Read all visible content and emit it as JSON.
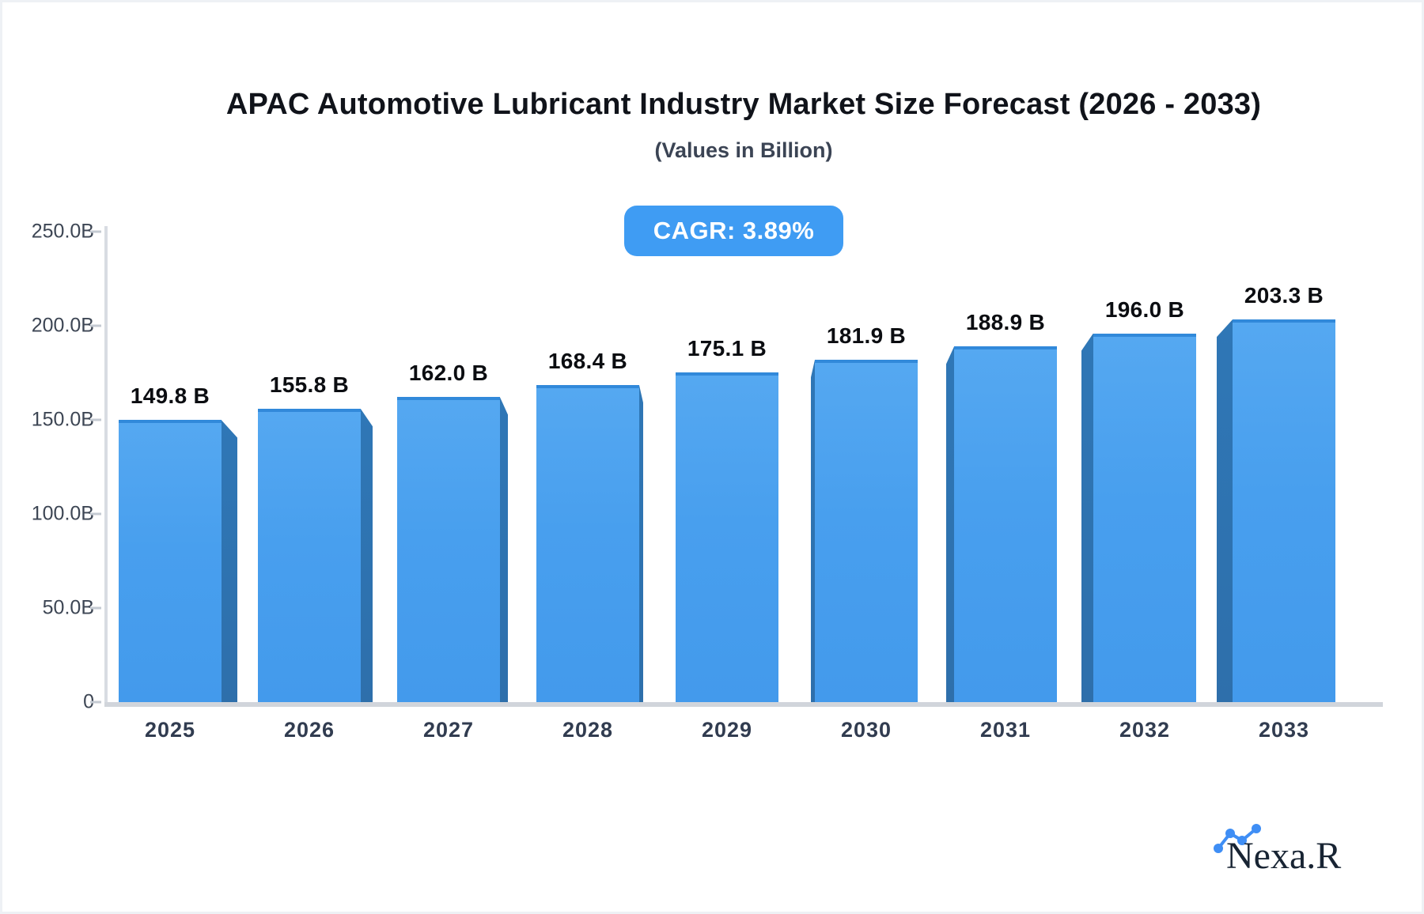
{
  "header": {
    "title": "APAC Automotive Lubricant Industry Market Size Forecast (2026 - 2033)",
    "subtitle": "(Values in Billion)",
    "cagr_badge": "CAGR: 3.89%",
    "badge_color": "#3f9cf3"
  },
  "chart_data": {
    "type": "bar",
    "title": "APAC Automotive Lubricant Industry Market Size Forecast (2026 - 2033)",
    "subtitle": "(Values in Billion)",
    "annotation": "CAGR: 3.89%",
    "categories": [
      "2025",
      "2026",
      "2027",
      "2028",
      "2029",
      "2030",
      "2031",
      "2032",
      "2033"
    ],
    "values": [
      149.8,
      155.8,
      162.0,
      168.4,
      175.1,
      181.9,
      188.9,
      196.0,
      203.3
    ],
    "value_label_suffix": " B",
    "xlabel": "",
    "ylabel": "",
    "ylim": [
      0,
      250
    ],
    "grid": false,
    "legend": false,
    "y_ticks": [
      {
        "label": "250.0B",
        "value": 250
      },
      {
        "label": "200.0B",
        "value": 200
      },
      {
        "label": "150.0B",
        "value": 150
      },
      {
        "label": "100.0B",
        "value": 100
      },
      {
        "label": "50.0B",
        "value": 50
      },
      {
        "label": "0",
        "value": 0
      }
    ],
    "colors": {
      "bar_top": "#55a8f1",
      "bar_bottom": "#439aec",
      "bar_top_line": "#3189da",
      "bar_side_shade": "#2f77b6",
      "axis": "#d8dce2",
      "label_text": "#0b0d11"
    }
  },
  "logo": {
    "text": "Nexa.R",
    "icon": "line-chart-icon",
    "icon_color": "#3f8ef5",
    "text_color": "#182433"
  }
}
